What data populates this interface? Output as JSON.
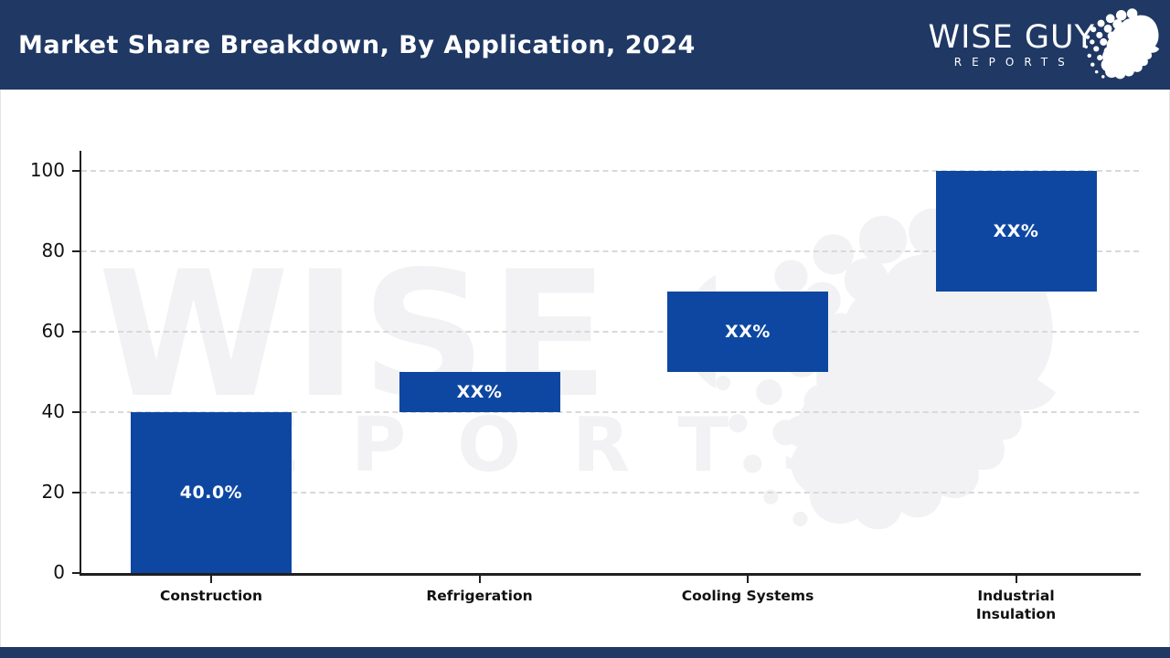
{
  "header": {
    "title": "Market Share Breakdown, By Application, 2024",
    "logo": {
      "wordmark": "WISE GUY",
      "subtext": "REPORTS"
    }
  },
  "watermark": {
    "wordmark": "WISE GUY",
    "subtext": "REPORTS"
  },
  "chart_data": {
    "type": "bar",
    "subtype": "waterfall",
    "title": "Market Share Breakdown, By Application, 2024",
    "categories": [
      "Construction",
      "Refrigeration",
      "Cooling Systems",
      "Industrial Insulation"
    ],
    "tick_labels": [
      "Construction",
      "Refrigeration",
      "Cooling Systems",
      "Industrial\nInsulation"
    ],
    "segments": [
      {
        "category": "Construction",
        "start": 0,
        "end": 40,
        "label": "40.0%"
      },
      {
        "category": "Refrigeration",
        "start": 40,
        "end": 50,
        "label": "XX%"
      },
      {
        "category": "Cooling Systems",
        "start": 50,
        "end": 70,
        "label": "XX%"
      },
      {
        "category": "Industrial Insulation",
        "start": 70,
        "end": 100,
        "label": "XX%"
      }
    ],
    "xlabel": "",
    "ylabel": "",
    "ylim": [
      0,
      100
    ],
    "yticks": [
      0,
      20,
      40,
      60,
      80,
      100
    ],
    "grid": "horizontal-dashed",
    "legend": null,
    "bar_color": "#0d47a1"
  },
  "colors": {
    "header_bg": "#1f3864",
    "footer_bg": "#1f3864",
    "bar": "#0d47a1",
    "grid": "#d9d9d9",
    "axis": "#1f1f1f",
    "text": "#111111",
    "bar_label": "#ffffff",
    "watermark": "#f2f2f4",
    "background": "#ffffff"
  }
}
